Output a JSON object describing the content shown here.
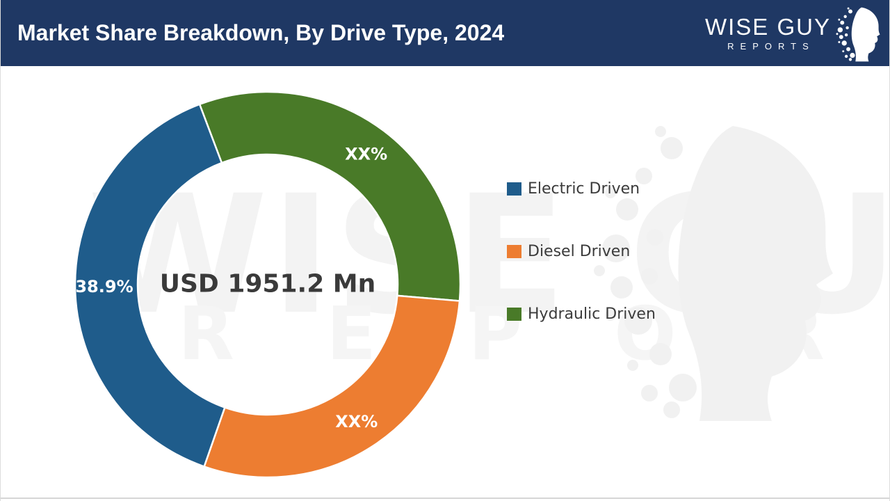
{
  "header": {
    "title": "Market Share Breakdown, By Drive Type, 2024",
    "bg_color": "#1f3864",
    "logo": {
      "line1": "WISE GUY",
      "line2": "REPORTS"
    }
  },
  "chart_data": {
    "type": "pie",
    "subtype": "donut",
    "title": "Market Share Breakdown, By Drive Type, 2024",
    "center_label": "USD 1951.2 Mn",
    "start_angle_deg": -20.7,
    "direction": "clockwise",
    "slices": [
      {
        "name": "Hydraulic Driven",
        "value_pct": 32.1,
        "label": "XX%",
        "color": "#497a28"
      },
      {
        "name": "Diesel Driven",
        "value_pct": 29.0,
        "label": "XX%",
        "color": "#ed7d31"
      },
      {
        "name": "Electric Driven",
        "value_pct": 38.9,
        "label": "38.9%",
        "color": "#1f5c8b"
      }
    ],
    "legend": [
      {
        "name": "Electric Driven",
        "color": "#1f5c8b"
      },
      {
        "name": "Diesel Driven",
        "color": "#ed7d31"
      },
      {
        "name": "Hydraulic Driven",
        "color": "#497a28"
      }
    ],
    "legend_position": "right",
    "label_color": "#ffffff"
  },
  "watermark": {
    "line1": "WISE GUY",
    "line2": "R E P O R T S"
  }
}
